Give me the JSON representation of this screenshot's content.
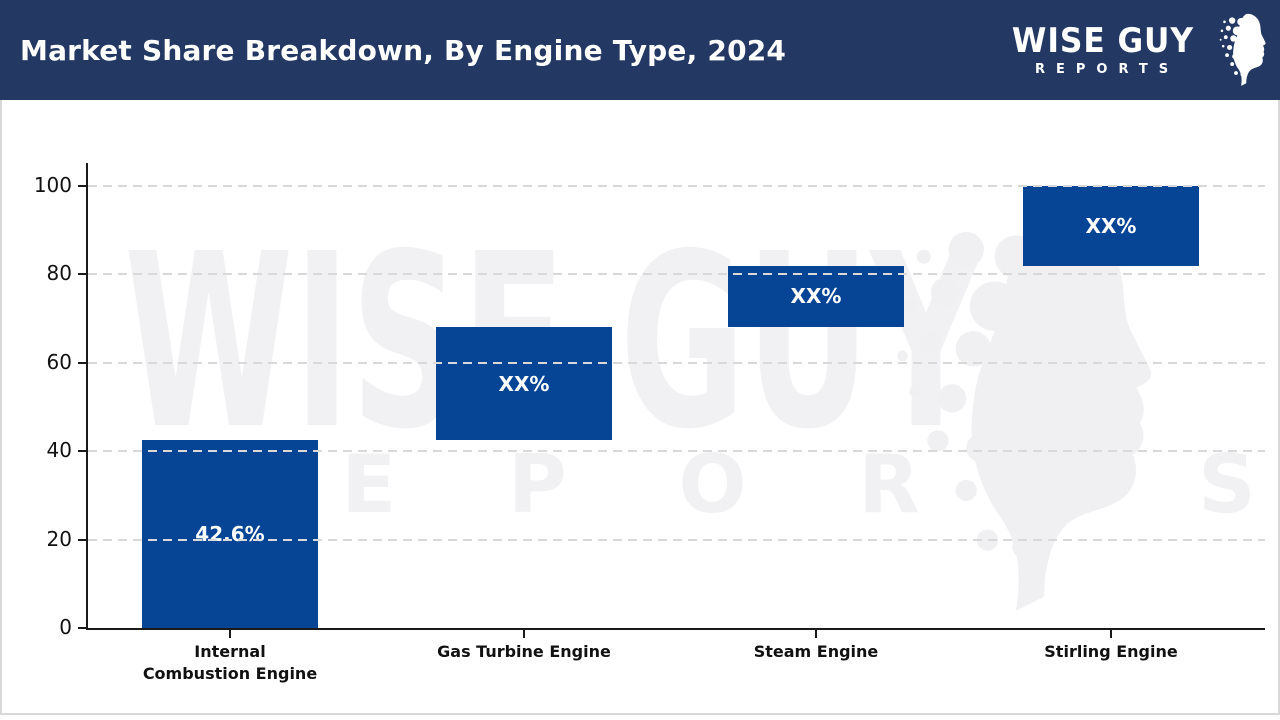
{
  "header": {
    "title": "Market Share Breakdown, By Engine Type, 2024",
    "bg_color": "#233863",
    "logo": {
      "wordmark": "WISE GUY",
      "subtext": "REPORTS"
    }
  },
  "watermark": {
    "line1": "WISE GUY",
    "line2": "R E P O R T S"
  },
  "chart_data": {
    "type": "bar",
    "subtype": "waterfall",
    "title": "Market Share Breakdown, By Engine Type, 2024",
    "xlabel": "",
    "ylabel": "",
    "ylim": [
      0,
      100
    ],
    "yticks": [
      0,
      20,
      40,
      60,
      80,
      100
    ],
    "grid": "horizontal-dashed",
    "legend": "none",
    "bar_color": "#064496",
    "value_label_color": "#ffffff",
    "categories": [
      "Internal Combustion Engine",
      "Gas Turbine Engine",
      "Steam Engine",
      "Stirling Engine"
    ],
    "bars": [
      {
        "category": "Internal Combustion Engine",
        "label_lines": [
          "Internal",
          "Combustion Engine"
        ],
        "start": 0,
        "end": 42.6,
        "value_label": "42.6%"
      },
      {
        "category": "Gas Turbine Engine",
        "label_lines": [
          "Gas Turbine Engine"
        ],
        "start": 42.6,
        "end": 68,
        "value_label": "XX%"
      },
      {
        "category": "Steam Engine",
        "label_lines": [
          "Steam Engine"
        ],
        "start": 68,
        "end": 82,
        "value_label": "XX%"
      },
      {
        "category": "Stirling Engine",
        "label_lines": [
          "Stirling Engine"
        ],
        "start": 82,
        "end": 100,
        "value_label": "XX%"
      }
    ]
  }
}
